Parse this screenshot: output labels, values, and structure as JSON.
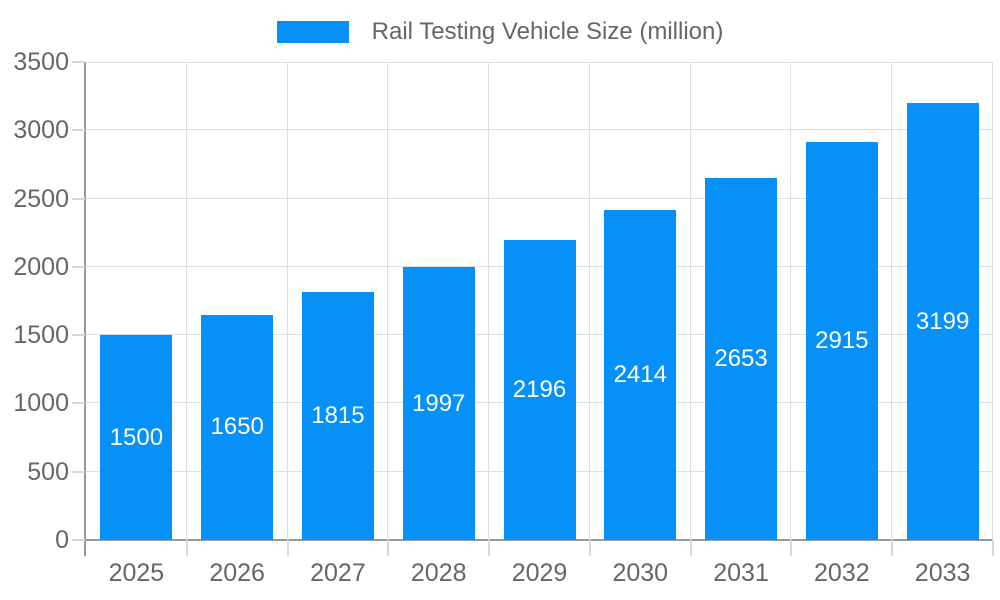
{
  "legend": {
    "label": "Rail Testing Vehicle Size (million)"
  },
  "chart_data": {
    "type": "bar",
    "title": "Rail Testing Vehicle Size (million)",
    "series_name": "Rail Testing Vehicle Size (million)",
    "categories": [
      "2025",
      "2026",
      "2027",
      "2028",
      "2029",
      "2030",
      "2031",
      "2032",
      "2033"
    ],
    "values": [
      1500,
      1650,
      1815,
      1997,
      2196,
      2414,
      2653,
      2915,
      3199
    ],
    "data_labels": [
      1500,
      1650,
      1815,
      1997,
      2196,
      2414,
      2653,
      2915,
      3199
    ],
    "data_label_position": "inside-center",
    "xlabel": "",
    "ylabel": "",
    "ylim": [
      0,
      3500
    ],
    "ytick_step": 500,
    "yticks": [
      0,
      500,
      1000,
      1500,
      2000,
      2500,
      3000,
      3500
    ],
    "grid": true,
    "legend_position": "top-center",
    "colors": {
      "bar": "#0690F9",
      "bar_label_text": "#FFFFFF",
      "axis_label_text": "#666666",
      "legend_text": "#666666",
      "gridline": "#DEDEDE",
      "tick": "#D8D8D8",
      "axis_line": "#999999",
      "background": "#FFFFFF"
    }
  }
}
